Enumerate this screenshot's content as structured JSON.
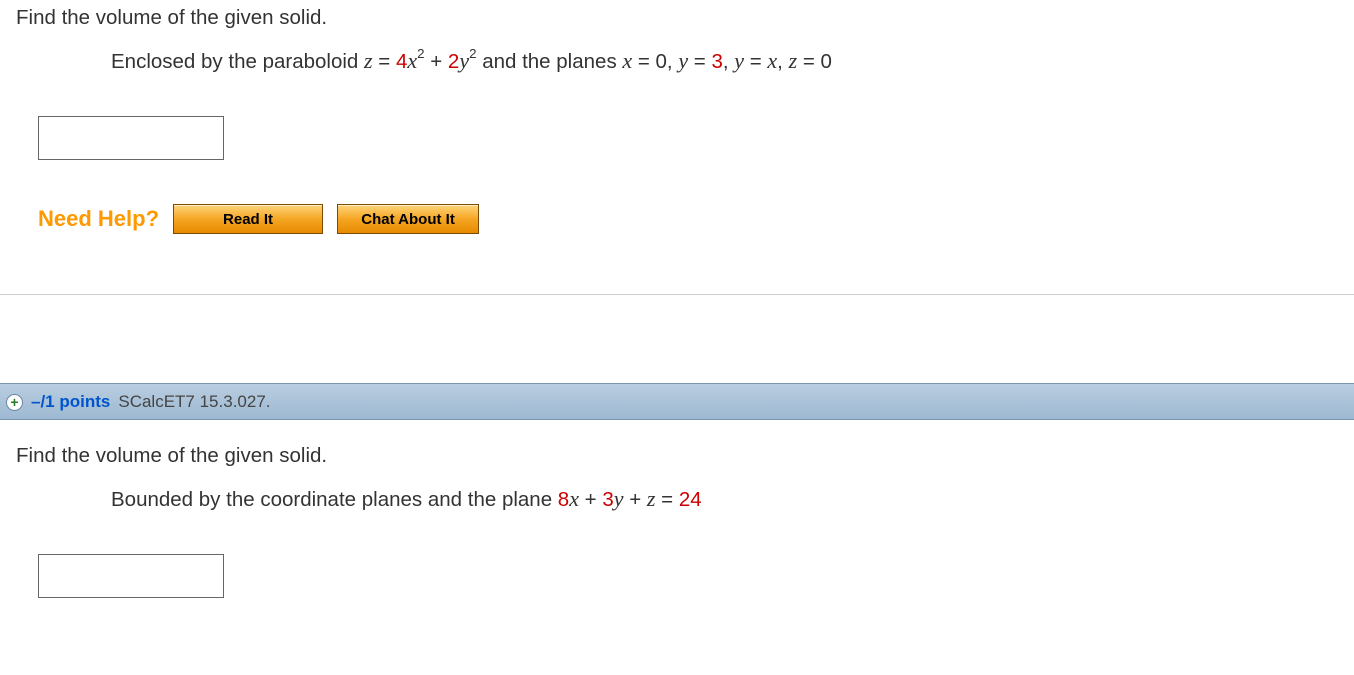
{
  "q1": {
    "prompt": "Find the volume of the given solid.",
    "desc_pre": "Enclosed by the paraboloid ",
    "z": "z",
    "eq": " = ",
    "coef1": "4",
    "x": "x",
    "plus": " + ",
    "coef2": "2",
    "y": "y",
    "desc_mid": "  and the planes ",
    "plane1a": "x",
    "plane1b": " = 0, ",
    "plane2a": "y",
    "plane2b": " = ",
    "plane2c": "3",
    "plane2d": ", ",
    "plane3a": "y",
    "plane3b": " = ",
    "plane3c": "x",
    "plane3d": ", ",
    "plane4a": "z",
    "plane4b": " = 0",
    "answer": ""
  },
  "help": {
    "label": "Need Help?",
    "read": "Read It",
    "chat": "Chat About It"
  },
  "header": {
    "expand": "+",
    "points": "–/1 points",
    "ref": "SCalcET7 15.3.027."
  },
  "q2": {
    "prompt": "Find the volume of the given solid.",
    "desc_pre": "Bounded by the coordinate planes and the plane  ",
    "c1": "8",
    "x": "x",
    "plus1": " + ",
    "c2": "3",
    "y": "y",
    "plus2": " + ",
    "z": "z",
    "eq": " = ",
    "rhs": "24",
    "answer": ""
  },
  "colors": {
    "accent_red": "#cc0000",
    "help_orange": "#ff9900",
    "link_blue": "#0055cc",
    "header_bg_top": "#b9cde0",
    "header_bg_bot": "#9db9d2"
  }
}
